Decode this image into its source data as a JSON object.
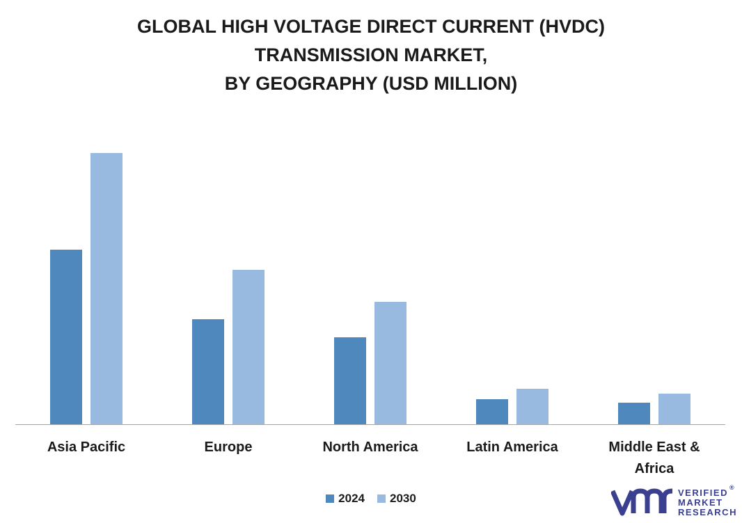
{
  "title_lines": [
    "GLOBAL HIGH VOLTAGE DIRECT CURRENT (HVDC)",
    "TRANSMISSION MARKET,",
    "BY GEOGRAPHY (USD MILLION)"
  ],
  "colors": {
    "2024": "#4f88bd",
    "2030": "#98b9e0",
    "axis": "#a6a6a6"
  },
  "chart_data": {
    "type": "bar",
    "title": "GLOBAL HIGH VOLTAGE DIRECT CURRENT (HVDC) TRANSMISSION MARKET, BY GEOGRAPHY (USD MILLION)",
    "categories": [
      "Asia Pacific",
      "Europe",
      "North America",
      "Latin America",
      "Middle East & Africa"
    ],
    "category_lines": [
      [
        "Asia Pacific"
      ],
      [
        "Europe"
      ],
      [
        "North America"
      ],
      [
        "Latin America"
      ],
      [
        "Middle East &",
        "Africa"
      ]
    ],
    "series": [
      {
        "name": "2024",
        "values": [
          251,
          151,
          125,
          36,
          31
        ]
      },
      {
        "name": "2030",
        "values": [
          390,
          222,
          176,
          51,
          44
        ]
      }
    ],
    "ylim": [
      0,
      420
    ],
    "grid": false,
    "legend": "bottom-center"
  },
  "logo": {
    "brand_lines": [
      "VERIFIED",
      "MARKET",
      "RESEARCH"
    ],
    "registered": "®"
  }
}
